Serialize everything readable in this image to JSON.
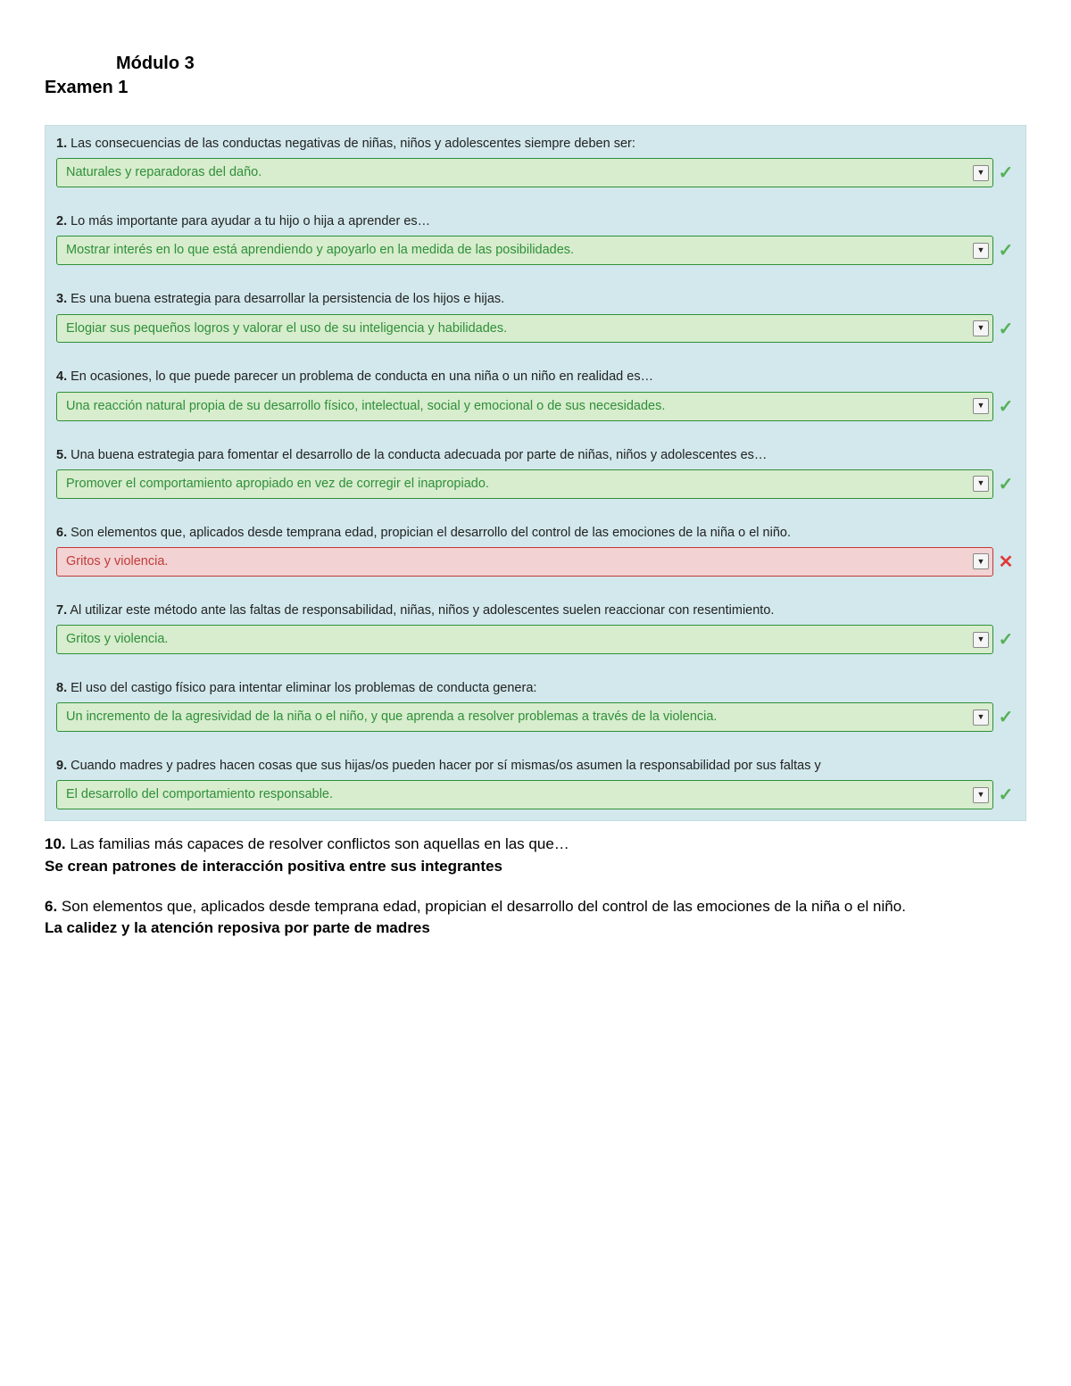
{
  "header": {
    "module": "Módulo 3",
    "exam": "Examen 1"
  },
  "colors": {
    "panel_bg": "#d2e8ec",
    "correct_bg": "#d7edcd",
    "correct_border": "#2f8f3a",
    "correct_text": "#2f8f3a",
    "wrong_bg": "#f2d2d2",
    "wrong_border": "#c43a3a",
    "wrong_text": "#c43a3a",
    "check_color": "#55b055",
    "x_color": "#e23a3a"
  },
  "quiz": {
    "questions": [
      {
        "num": "1.",
        "text": "Las consecuencias de las conductas negativas de niñas, niños y adolescentes siempre deben ser:",
        "answer": "Naturales y reparadoras del daño.",
        "status": "correct"
      },
      {
        "num": "2.",
        "text": "Lo más importante para ayudar a tu hijo o hija a aprender es…",
        "answer": "Mostrar interés en lo que está aprendiendo y apoyarlo en la medida de las posibilidades.",
        "status": "correct"
      },
      {
        "num": "3.",
        "text": "Es una buena estrategia para desarrollar la persistencia de los hijos e hijas.",
        "answer": "Elogiar sus pequeños logros y valorar el uso de su inteligencia y habilidades.",
        "status": "correct"
      },
      {
        "num": "4.",
        "text": "En ocasiones, lo que puede parecer un problema de conducta en una niña o un niño en realidad es…",
        "answer": "Una reacción natural propia de su desarrollo físico, intelectual, social y emocional o de sus necesidades.",
        "status": "correct"
      },
      {
        "num": "5.",
        "text": "Una buena estrategia para fomentar el desarrollo de la conducta adecuada por parte de niñas, niños y adolescentes es…",
        "answer": "Promover el comportamiento apropiado en vez de corregir el inapropiado.",
        "status": "correct"
      },
      {
        "num": "6.",
        "text": "Son elementos que, aplicados desde temprana edad, propician el desarrollo del control de las emociones de la niña o el niño.",
        "answer": "Gritos y violencia.",
        "status": "wrong"
      },
      {
        "num": "7.",
        "text": "Al utilizar este método ante las faltas de responsabilidad, niñas, niños y adolescentes suelen reaccionar con resentimiento.",
        "answer": "Gritos y violencia.",
        "status": "correct"
      },
      {
        "num": "8.",
        "text": "El uso del castigo físico para intentar eliminar los problemas de conducta genera:",
        "answer": "Un incremento de la agresividad de la niña o el niño, y que aprenda a resolver problemas a través de la violencia.",
        "status": "correct"
      },
      {
        "num": "9.",
        "text": "Cuando madres y padres hacen cosas que sus hijas/os pueden hacer por sí mismas/os asumen la responsabilidad por sus faltas y",
        "answer": "El desarrollo del comportamiento responsable.",
        "status": "correct"
      }
    ]
  },
  "footer": {
    "items": [
      {
        "num": "10.",
        "question": "Las familias más capaces de resolver conflictos son aquellas en las que…",
        "answer": "Se crean patrones de interacción positiva entre sus integrantes"
      },
      {
        "num": "6.",
        "question": "Son elementos que, aplicados desde temprana edad, propician el desarrollo del control de las emociones de la niña o el niño.",
        "answer": "La calidez y la atención reposiva por parte  de madres"
      }
    ]
  },
  "icons": {
    "dropdown": "▼",
    "check": "✓",
    "x": "✕"
  }
}
